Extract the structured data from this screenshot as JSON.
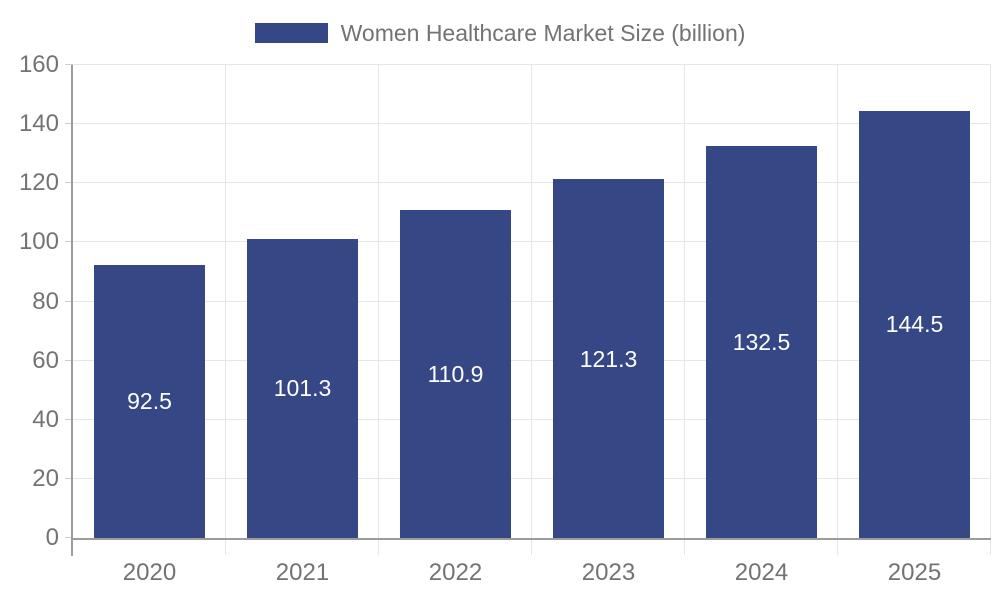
{
  "chart_data": {
    "type": "bar",
    "title": "",
    "legend": {
      "label": "Women Healthcare Market Size (billion)",
      "position": "top"
    },
    "categories": [
      "2020",
      "2021",
      "2022",
      "2023",
      "2024",
      "2025"
    ],
    "series": [
      {
        "name": "Women Healthcare Market Size (billion)",
        "values": [
          92.5,
          101.3,
          110.9,
          121.3,
          132.5,
          144.5
        ]
      }
    ],
    "value_labels": [
      "92.5",
      "101.3",
      "110.9",
      "121.3",
      "132.5",
      "144.5"
    ],
    "xlabel": "",
    "ylabel": "",
    "ylim": [
      0,
      160
    ],
    "yticks": [
      0,
      20,
      40,
      60,
      80,
      100,
      120,
      140,
      160
    ],
    "grid": true,
    "colors": {
      "bar": "#354784",
      "value_label": "#ffffff",
      "axis_text": "#737373",
      "legend_text": "#737373",
      "gridline": "#e6e6e6",
      "axis_line": "#9c9c9c",
      "tick": "#cccccc",
      "background": "#ffffff"
    }
  }
}
